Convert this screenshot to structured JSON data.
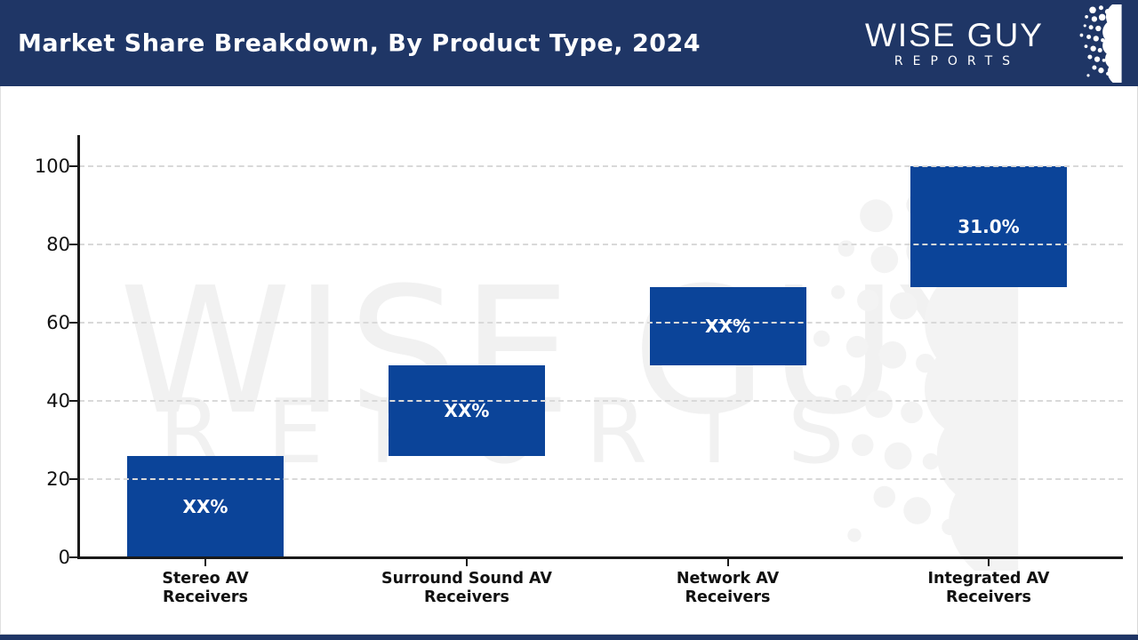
{
  "header": {
    "title": "Market Share Breakdown, By Product Type, 2024",
    "logo": {
      "line1": "WISE GUY",
      "line2": "REPORTS"
    }
  },
  "watermark": {
    "line1": "WISE GUY",
    "line2": "REPORTS"
  },
  "chart_data": {
    "type": "bar",
    "subtype": "waterfall",
    "title": "Market Share Breakdown, By Product Type, 2024",
    "categories": [
      "Stereo AV Receivers",
      "Surround Sound AV Receivers",
      "Network AV Receivers",
      "Integrated AV Receivers"
    ],
    "category_label_lines": [
      [
        "Stereo AV",
        "Receivers"
      ],
      [
        "Surround Sound AV",
        "Receivers"
      ],
      [
        "Network AV",
        "Receivers"
      ],
      [
        "Integrated AV",
        "Receivers"
      ]
    ],
    "segments": [
      {
        "category": "Stereo AV Receivers",
        "start": 0,
        "end": 26,
        "label": "XX%"
      },
      {
        "category": "Surround Sound AV Receivers",
        "start": 26,
        "end": 49,
        "label": "XX%"
      },
      {
        "category": "Network AV Receivers",
        "start": 49,
        "end": 69,
        "label": "XX%"
      },
      {
        "category": "Integrated AV Receivers",
        "start": 69,
        "end": 100,
        "label": "31.0%"
      }
    ],
    "y_ticks": [
      0,
      20,
      40,
      60,
      80,
      100
    ],
    "ylim": [
      0,
      108
    ],
    "xlabel": "",
    "ylabel": "",
    "grid": "horizontal-dashed-over-bars",
    "legend": "none"
  },
  "colors": {
    "header_bg": "#1F3666",
    "bar": "#0B4499",
    "bar_label": "#FFFFFF",
    "grid": "#D9D9D9",
    "axis": "#1A1A1A",
    "watermark": "#F1F1F1",
    "background": "#FFFFFF"
  }
}
